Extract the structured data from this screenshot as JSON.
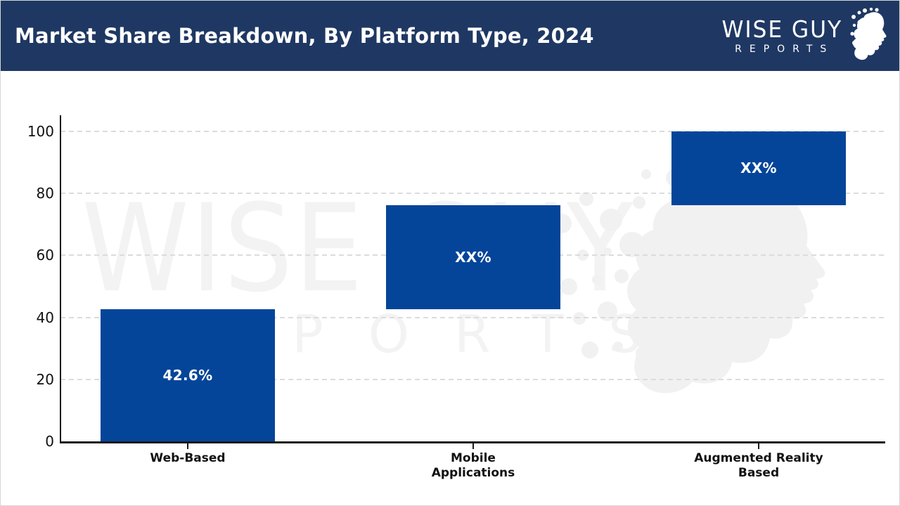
{
  "header": {
    "title": "Market Share Breakdown, By Platform Type, 2024",
    "logo": {
      "line1": "WISE GUY",
      "line2": "REPORTS"
    }
  },
  "watermark": {
    "line1": "WISE GUY",
    "line2": "REPORTS"
  },
  "icons": {
    "brand_face": "dotted-head-profile-icon",
    "watermark_face": "dotted-head-profile-watermark"
  },
  "colors": {
    "header_bg": "#1f3863",
    "bar": "#04459A",
    "bar_label_text": "#ffffff",
    "grid": "#dcdcdc",
    "axis": "#1a1a1a",
    "tick_text": "#111111",
    "watermark": "#f3f3f3",
    "page_border": "#d6d6d6",
    "title_text": "#ffffff"
  },
  "chart_data": {
    "type": "bar",
    "subtype": "floating-range-segments",
    "title": "Market Share Breakdown, By Platform Type, 2024",
    "categories": [
      "Web-Based",
      "Mobile\nApplications",
      "Augmented Reality\nBased"
    ],
    "series": [
      {
        "name": "Market Share",
        "ranges": [
          {
            "from": 0,
            "to": 42.6
          },
          {
            "from": 42.6,
            "to": 76.2
          },
          {
            "from": 76.2,
            "to": 100
          }
        ]
      }
    ],
    "bar_labels": [
      "42.6%",
      "XX%",
      "XX%"
    ],
    "yticks": [
      0,
      20,
      40,
      60,
      80,
      100
    ],
    "ylim": [
      0,
      105
    ],
    "xlabel": "",
    "ylabel": "",
    "legend": "none",
    "grid": "horizontal-dashed",
    "bar_color": "#04459A"
  }
}
